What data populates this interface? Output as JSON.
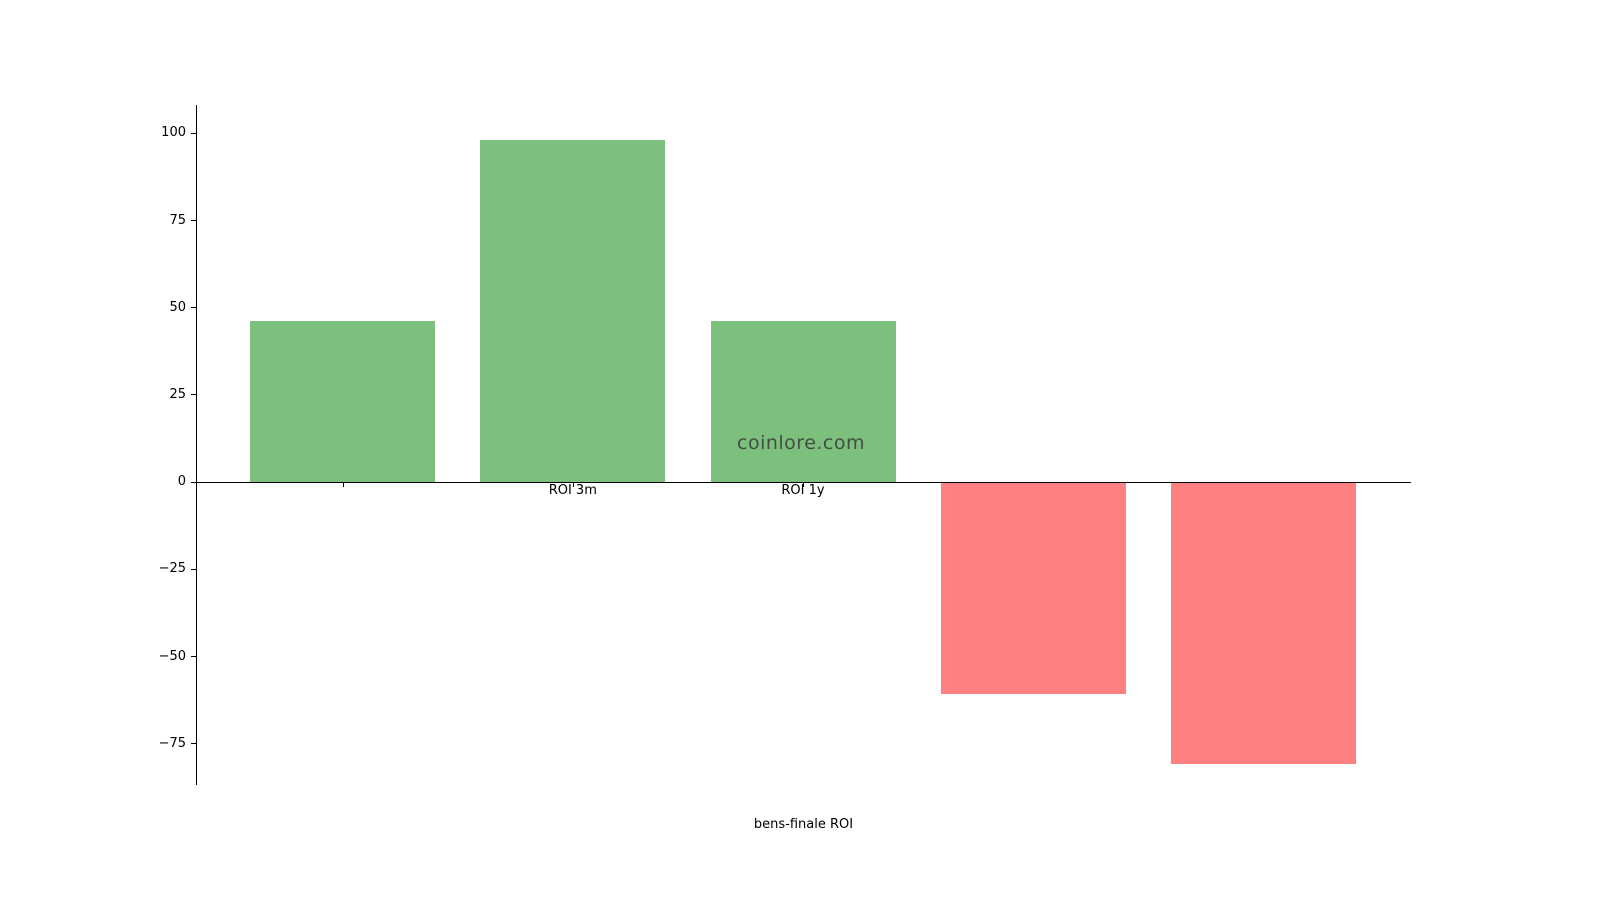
{
  "chart_data": {
    "type": "bar",
    "title": "",
    "xlabel": "bens-finale ROI",
    "ylabel": "",
    "categories": [
      "",
      "ROI 3m",
      "ROI 1y",
      "",
      ""
    ],
    "values": [
      46,
      98,
      46,
      -61,
      -81
    ],
    "bar_colors": [
      "#7dc07d",
      "#7dc07d",
      "#7dc07d",
      "#ff8080",
      "#ff8080"
    ],
    "positive_color": "#7dc07d",
    "negative_color": "#ff8080",
    "y_ticks": [
      100,
      75,
      50,
      25,
      0,
      -25,
      -50,
      -75
    ],
    "y_tick_labels": [
      "100",
      "75",
      "50",
      "25",
      "0",
      "−25",
      "−50",
      "−75"
    ],
    "ylim": [
      -87,
      108
    ],
    "grid": false,
    "legend": "none",
    "axis_color": "#000000",
    "text_color": "#000000",
    "watermark": "coinlore.com",
    "watermark_color": "#333333"
  }
}
